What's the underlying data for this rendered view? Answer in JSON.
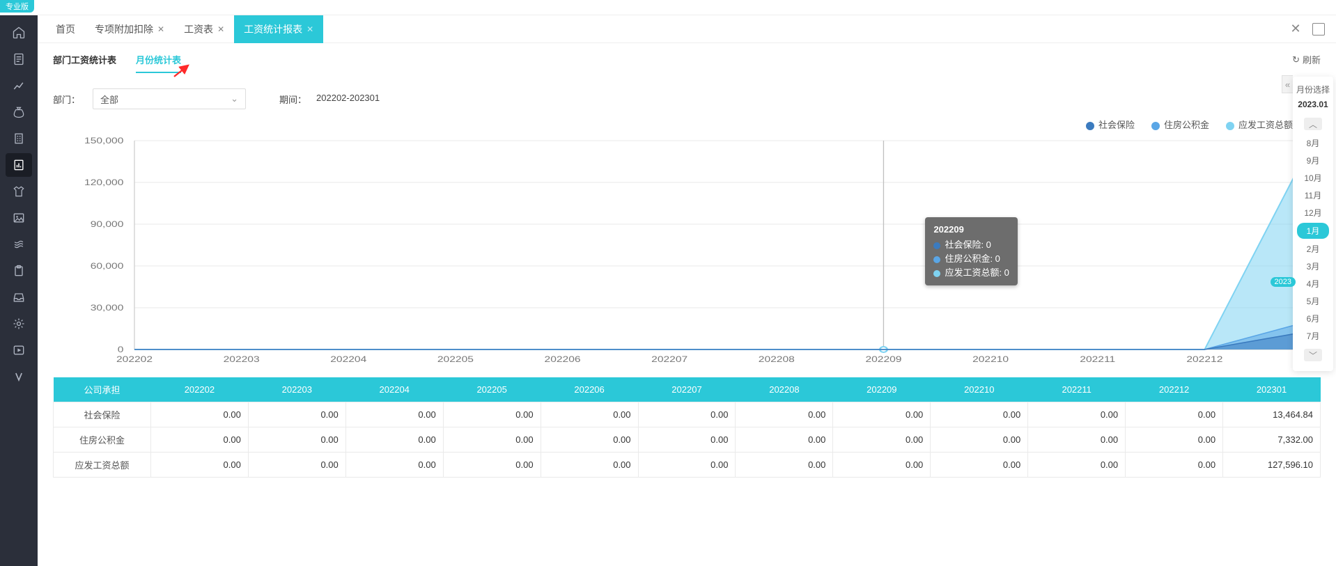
{
  "edition_badge": "专业版",
  "tabs": [
    {
      "label": "首页",
      "closable": false
    },
    {
      "label": "专项附加扣除",
      "closable": true
    },
    {
      "label": "工资表",
      "closable": true
    },
    {
      "label": "工资统计报表",
      "closable": true,
      "active": true
    }
  ],
  "refresh_label": "刷新",
  "subtabs": [
    {
      "label": "部门工资统计表",
      "active": false
    },
    {
      "label": "月份统计表",
      "active": true
    }
  ],
  "filter": {
    "dept_label": "部门：",
    "dept_value": "全部",
    "period_label": "期间：",
    "period_value": "202202-202301"
  },
  "legend": [
    {
      "name": "社会保险",
      "color": "#3b7bbf"
    },
    {
      "name": "住房公积金",
      "color": "#5aa6e6"
    },
    {
      "name": "应发工资总额",
      "color": "#7fd3f2"
    }
  ],
  "chart": {
    "type": "area",
    "background_color": "#ffffff",
    "grid_color": "#e9e9e9",
    "axis_color": "#cfcfcf",
    "y": {
      "min": 0,
      "max": 150000,
      "step": 30000,
      "labels": [
        "150,000",
        "120,000",
        "90,000",
        "60,000",
        "30,000",
        "0"
      ]
    },
    "x_categories": [
      "202202",
      "202203",
      "202204",
      "202205",
      "202206",
      "202207",
      "202208",
      "202209",
      "202210",
      "202211",
      "202212",
      "202301"
    ],
    "series": [
      {
        "key": "社会保险",
        "color": "#3b7bbf",
        "fill": "#3b7bbf",
        "fill_opacity": 0.55,
        "values": [
          0,
          0,
          0,
          0,
          0,
          0,
          0,
          0,
          0,
          0,
          0,
          13465
        ]
      },
      {
        "key": "住房公积金",
        "color": "#5aa6e6",
        "fill": "#5aa6e6",
        "fill_opacity": 0.55,
        "values": [
          0,
          0,
          0,
          0,
          0,
          0,
          0,
          0,
          0,
          0,
          0,
          20797
        ]
      },
      {
        "key": "应发工资总额",
        "color": "#7fd3f2",
        "fill": "#7fd3f2",
        "fill_opacity": 0.55,
        "values": [
          0,
          0,
          0,
          0,
          0,
          0,
          0,
          0,
          0,
          0,
          0,
          148393
        ]
      }
    ],
    "hover_index": 7,
    "tooltip": {
      "title": "202209",
      "rows": [
        {
          "label": "社会保险: 0",
          "color": "#3b7bbf"
        },
        {
          "label": "住房公积金: 0",
          "color": "#5aa6e6"
        },
        {
          "label": "应发工资总额: 0",
          "color": "#7fd3f2"
        }
      ]
    }
  },
  "table": {
    "header_first": "公司承担",
    "columns": [
      "202202",
      "202203",
      "202204",
      "202205",
      "202206",
      "202207",
      "202208",
      "202209",
      "202210",
      "202211",
      "202212",
      "202301"
    ],
    "rows": [
      {
        "label": "社会保险",
        "cells": [
          "0.00",
          "0.00",
          "0.00",
          "0.00",
          "0.00",
          "0.00",
          "0.00",
          "0.00",
          "0.00",
          "0.00",
          "0.00",
          "13,464.84"
        ]
      },
      {
        "label": "住房公积金",
        "cells": [
          "0.00",
          "0.00",
          "0.00",
          "0.00",
          "0.00",
          "0.00",
          "0.00",
          "0.00",
          "0.00",
          "0.00",
          "0.00",
          "7,332.00"
        ]
      },
      {
        "label": "应发工资总额",
        "cells": [
          "0.00",
          "0.00",
          "0.00",
          "0.00",
          "0.00",
          "0.00",
          "0.00",
          "0.00",
          "0.00",
          "0.00",
          "0.00",
          "127,596.10"
        ]
      }
    ]
  },
  "month_picker": {
    "header": "月份选择",
    "value": "2023.01",
    "year_badge": "2023",
    "months": [
      "8月",
      "9月",
      "10月",
      "11月",
      "12月",
      "1月",
      "2月",
      "3月",
      "4月",
      "5月",
      "6月",
      "7月"
    ],
    "active_index": 5
  },
  "rail_icons": [
    "home",
    "doc",
    "chart-line",
    "money-bag",
    "building",
    "report",
    "shirt",
    "image",
    "wash",
    "clipboard",
    "inbox",
    "gear",
    "play",
    "letter-v"
  ],
  "rail_active_index": 5
}
